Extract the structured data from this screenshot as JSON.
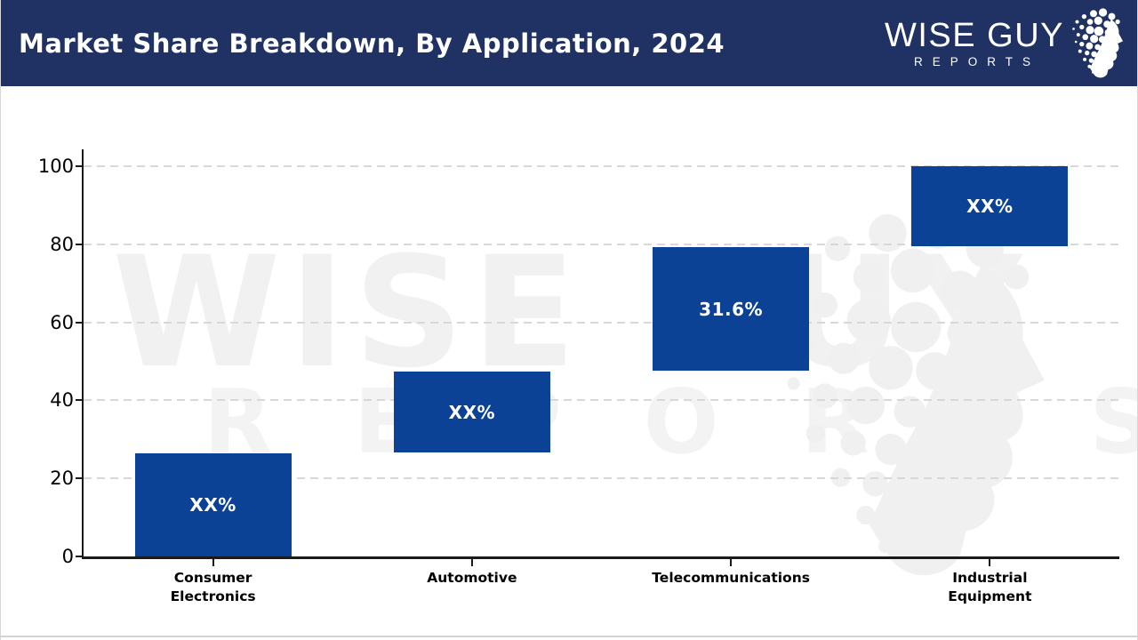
{
  "header": {
    "title": "Market Share Breakdown, By Application, 2024",
    "bg_color": "#1f3263",
    "logo": {
      "line1": "WISE GUY",
      "line2": "REPORTS"
    }
  },
  "watermark": {
    "line1": "WISE GUY",
    "line2": "REPORTS"
  },
  "chart_data": {
    "type": "bar",
    "subtype": "waterfall",
    "title": "Market Share Breakdown, By Application, 2024",
    "categories": [
      "Consumer\nElectronics",
      "Automotive",
      "Telecommunications",
      "Industrial\nEquipment"
    ],
    "segments": [
      {
        "category": "Consumer Electronics",
        "start": 0,
        "end": 26.4,
        "value_label": "XX%"
      },
      {
        "category": "Automotive",
        "start": 26.6,
        "end": 47.4,
        "value_label": "XX%"
      },
      {
        "category": "Telecommunications",
        "start": 47.6,
        "end": 79.2,
        "value_label": "31.6%"
      },
      {
        "category": "Industrial Equipment",
        "start": 79.4,
        "end": 100,
        "value_label": "XX%"
      }
    ],
    "xlabel": "",
    "ylabel": "",
    "ylim": [
      0,
      100
    ],
    "yticks": [
      0,
      20,
      40,
      60,
      80,
      100
    ],
    "grid": "horizontal-dashed",
    "legend": "none",
    "bar_color": "#0b4296",
    "bar_label_color": "#ffffff",
    "axis_color": "#1a1a1a",
    "gridline_color": "#d8d8d8"
  }
}
